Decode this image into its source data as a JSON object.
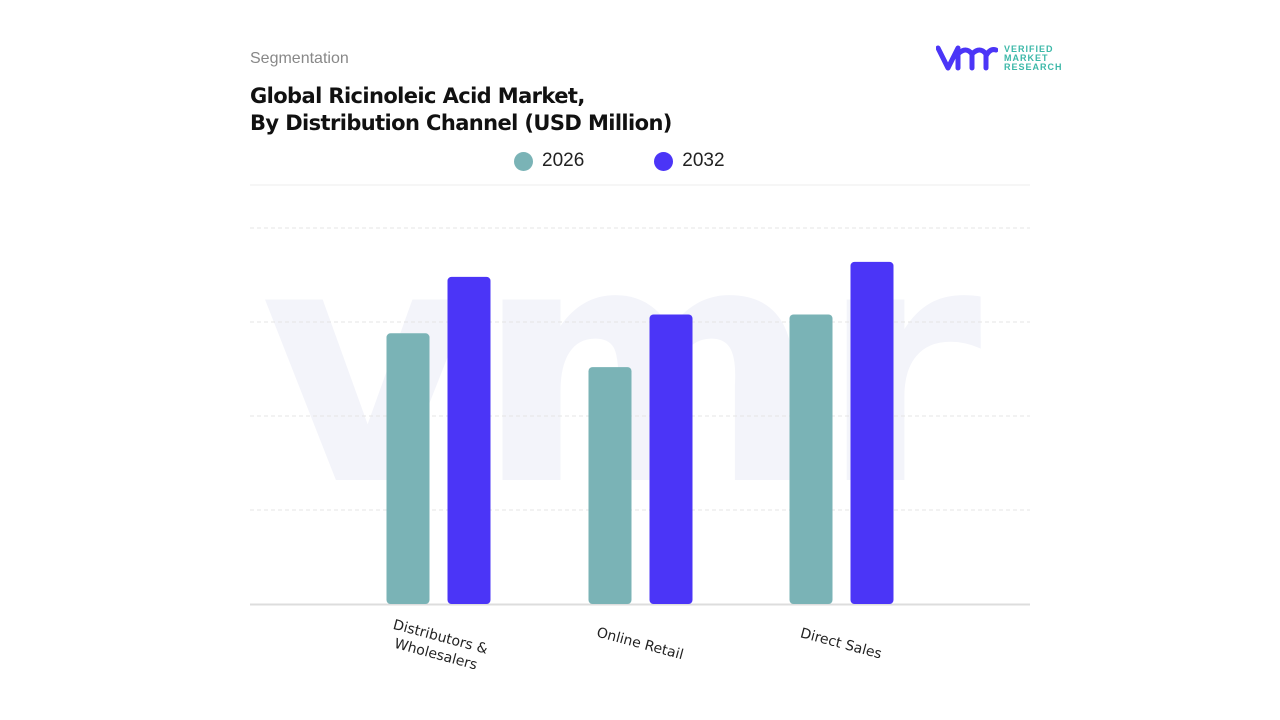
{
  "header": {
    "segment_label": "Segmentation",
    "title_line1": "Global Ricinoleic Acid Market,",
    "title_line2": "By Distribution Channel (USD Million)"
  },
  "logo": {
    "mark": "vmr",
    "line1": "VERIFIED",
    "line2": "MARKET",
    "line3": "RESEARCH"
  },
  "chart_data": {
    "type": "bar",
    "title": "Global Ricinoleic Acid Market, By Distribution Channel (USD Million)",
    "categories": [
      "Distributors & Wholesalers",
      "Online Retail",
      "Direct Sales"
    ],
    "series": [
      {
        "name": "2026",
        "color": "#7ab3b6",
        "values": [
          72,
          63,
          77
        ]
      },
      {
        "name": "2032",
        "color": "#4b35f7",
        "values": [
          87,
          77,
          91
        ]
      }
    ],
    "ylim": [
      0,
      100
    ],
    "grid": true,
    "legend": "top-center",
    "xlabel": "",
    "ylabel": ""
  }
}
